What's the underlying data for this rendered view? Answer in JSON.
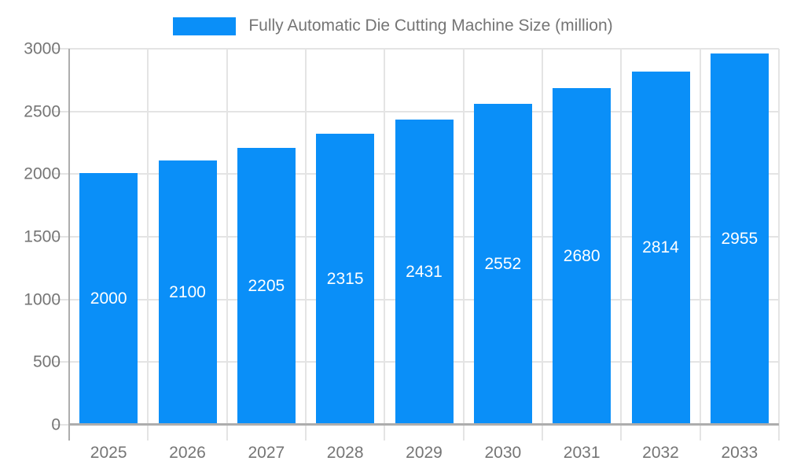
{
  "legend": {
    "label": "Fully Automatic Die Cutting Machine Size (million)"
  },
  "colors": {
    "background": "#FFFFFF",
    "bar": "#0A8FF8",
    "grid": "#E4E4E4",
    "axis": "#ADADAD",
    "text": "#757575",
    "bar_label": "#FFFFFF"
  },
  "chart_data": {
    "type": "bar",
    "title": "Fully Automatic Die Cutting Machine Size (million)",
    "series_name": "Fully Automatic Die Cutting Machine Size (million)",
    "categories": [
      "2025",
      "2026",
      "2027",
      "2028",
      "2029",
      "2030",
      "2031",
      "2032",
      "2033"
    ],
    "values": [
      2000,
      2100,
      2205,
      2315,
      2431,
      2552,
      2680,
      2814,
      2955
    ],
    "xlabel": "",
    "ylabel": "",
    "ylim": [
      0,
      3000
    ],
    "yticks": [
      0,
      500,
      1000,
      1500,
      2000,
      2500,
      3000
    ],
    "grid": true,
    "legend_position": "top",
    "bar_value_labels": true
  }
}
